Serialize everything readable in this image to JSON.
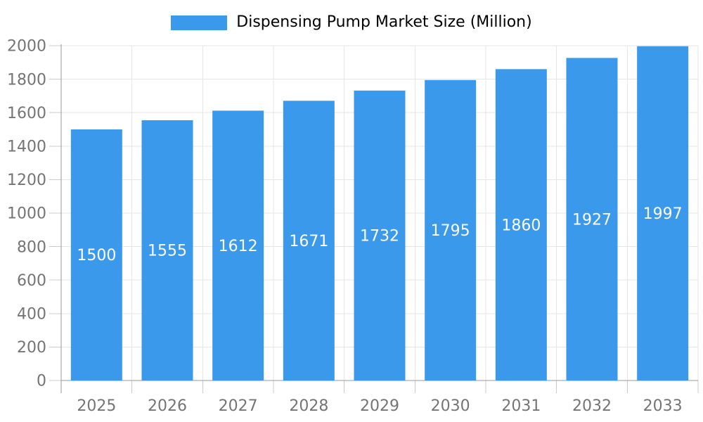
{
  "legend": {
    "label": "Dispensing Pump Market Size (Million)"
  },
  "chart_data": {
    "type": "bar",
    "title": "Dispensing Pump Market Size (Million)",
    "series_name": "Dispensing Pump Market Size (Million)",
    "categories": [
      "2025",
      "2026",
      "2027",
      "2028",
      "2029",
      "2030",
      "2031",
      "2032",
      "2033"
    ],
    "values": [
      1500,
      1555,
      1612,
      1671,
      1732,
      1795,
      1860,
      1927,
      1997
    ],
    "yticks": [
      0,
      200,
      400,
      600,
      800,
      1000,
      1200,
      1400,
      1600,
      1800,
      2000
    ],
    "ylim": [
      0,
      2000
    ],
    "xlabel": "",
    "ylabel": "",
    "grid": true,
    "legend_position": "top-center",
    "value_label_position": "inside-middle",
    "colors": {
      "bar": "#3B99EC",
      "value_label": "#FFFFFF",
      "axis_text": "#757575",
      "gridline": "#E6E6E6",
      "tick": "#CCCCCC",
      "axis_line": "#999999",
      "background": "#FFFFFF"
    }
  }
}
